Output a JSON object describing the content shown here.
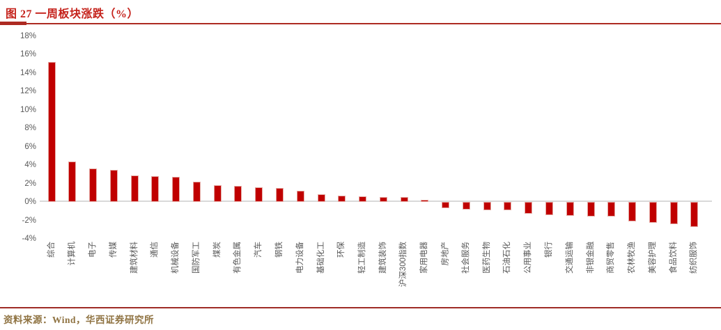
{
  "title": "图 27 一周板块涨跌（%）",
  "source": "资料来源：Wind，华西证券研究所",
  "colors": {
    "bar_fill": "#c00000",
    "bar_border": "#e5aaa4",
    "title_text": "#c5231c",
    "rule_red": "#ad2a22",
    "axis_gray": "#d9d9d9",
    "tick_text": "#595959",
    "source_text": "#8f7342"
  },
  "chart_data": {
    "type": "bar",
    "title": "一周板块涨跌（%）",
    "xlabel": "",
    "ylabel": "",
    "grid": false,
    "legend": false,
    "ylim": [
      -4,
      18
    ],
    "yticks": [
      18,
      16,
      14,
      12,
      10,
      8,
      6,
      4,
      2,
      0,
      -2,
      -4
    ],
    "ytick_suffix": "%",
    "categories": [
      "综合",
      "计算机",
      "电子",
      "传媒",
      "建筑材料",
      "通信",
      "机械设备",
      "国防军工",
      "煤炭",
      "有色金属",
      "汽车",
      "钢铁",
      "电力设备",
      "基础化工",
      "环保",
      "轻工制造",
      "建筑装饰",
      "沪深300指数",
      "家用电器",
      "房地产",
      "社会服务",
      "医药生物",
      "石油石化",
      "公用事业",
      "银行",
      "交通运输",
      "非银金融",
      "商贸零售",
      "农林牧渔",
      "美容护理",
      "食品饮料",
      "纺织服饰"
    ],
    "values": [
      15.2,
      4.4,
      3.6,
      3.5,
      2.9,
      2.8,
      2.7,
      2.2,
      1.8,
      1.7,
      1.6,
      1.5,
      1.2,
      0.8,
      0.7,
      0.6,
      0.5,
      0.5,
      0.2,
      -0.7,
      -0.8,
      -0.9,
      -0.9,
      -1.3,
      -1.4,
      -1.5,
      -1.6,
      -1.6,
      -2.1,
      -2.3,
      -2.4,
      -2.7
    ]
  }
}
